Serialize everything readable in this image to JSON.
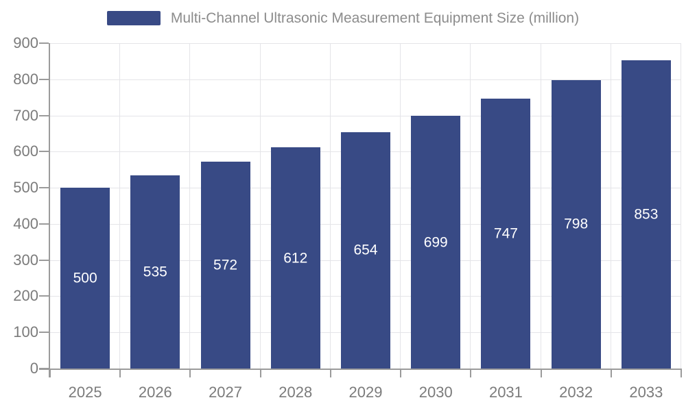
{
  "chart_data": {
    "type": "bar",
    "categories": [
      "2025",
      "2026",
      "2027",
      "2028",
      "2029",
      "2030",
      "2031",
      "2032",
      "2033"
    ],
    "series": [
      {
        "name": "Multi-Channel Ultrasonic Measurement Equipment Size (million)",
        "values": [
          500,
          535,
          572,
          612,
          654,
          699,
          747,
          798,
          853
        ]
      }
    ],
    "title": "",
    "xlabel": "",
    "ylabel": "",
    "ylim": [
      0,
      900
    ],
    "ytick_step": 100,
    "grid": true,
    "legend_position": "top",
    "value_label_position": "inside-center",
    "colors": {
      "bar": "#384a85",
      "value_label": "#ffffff",
      "grid": "#e4e4e8",
      "axis": "#9b9b9b",
      "tick_label": "#7b7b7b",
      "legend_text": "#8c8c8c"
    }
  }
}
